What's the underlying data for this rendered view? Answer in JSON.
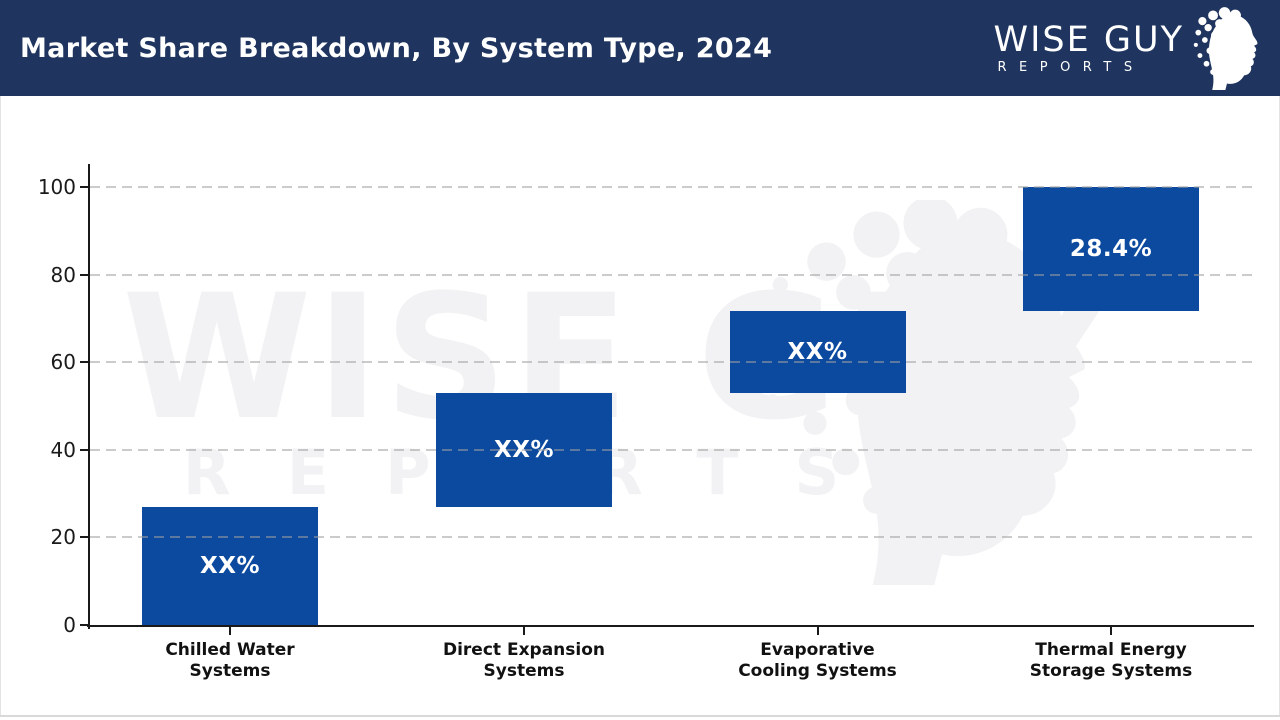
{
  "header": {
    "title": "Market Share Breakdown, By System Type, 2024",
    "logo": {
      "wise_guy": "WISE GUY",
      "reports": "REPORTS"
    }
  },
  "watermark": {
    "wise_guy": "WISE GUY",
    "reports": "REPORTS"
  },
  "chart_data": {
    "type": "bar",
    "subtype": "waterfall",
    "title": "Market Share Breakdown, By System Type, 2024",
    "unit": "percent",
    "categories": [
      "Chilled Water Systems",
      "Direct Expansion Systems",
      "Evaporative Cooling Systems",
      "Thermal Energy Storage Systems"
    ],
    "category_lines": [
      [
        "Chilled Water",
        "Systems"
      ],
      [
        "Direct Expansion",
        "Systems"
      ],
      [
        "Evaporative",
        "Cooling Systems"
      ],
      [
        "Thermal Energy",
        "Storage Systems"
      ]
    ],
    "segments": [
      {
        "category": "Chilled Water Systems",
        "start": 0,
        "end": 27,
        "value_label": "XX%"
      },
      {
        "category": "Direct Expansion Systems",
        "start": 27,
        "end": 53,
        "value_label": "XX%"
      },
      {
        "category": "Evaporative Cooling Systems",
        "start": 53,
        "end": 71.6,
        "value_label": "XX%"
      },
      {
        "category": "Thermal Energy Storage Systems",
        "start": 71.6,
        "end": 100,
        "value": 28.4,
        "value_label": "28.4%"
      }
    ],
    "ylim": [
      0,
      100
    ],
    "yticks": [
      0,
      20,
      40,
      60,
      80,
      100
    ],
    "grid": {
      "horizontal": true,
      "style": "dashed"
    },
    "legend": "none",
    "bar_color": "#0b4a9f",
    "value_label_color": "#ffffff"
  },
  "colors": {
    "header_bg": "#1f355f",
    "bar": "#0b4a9f",
    "axis": "#1a1a1a",
    "grid": "#d2d2d2",
    "watermark": "#f2f2f4",
    "page_bg": "#ffffff",
    "bottom_rule": "#d9d9d9"
  }
}
